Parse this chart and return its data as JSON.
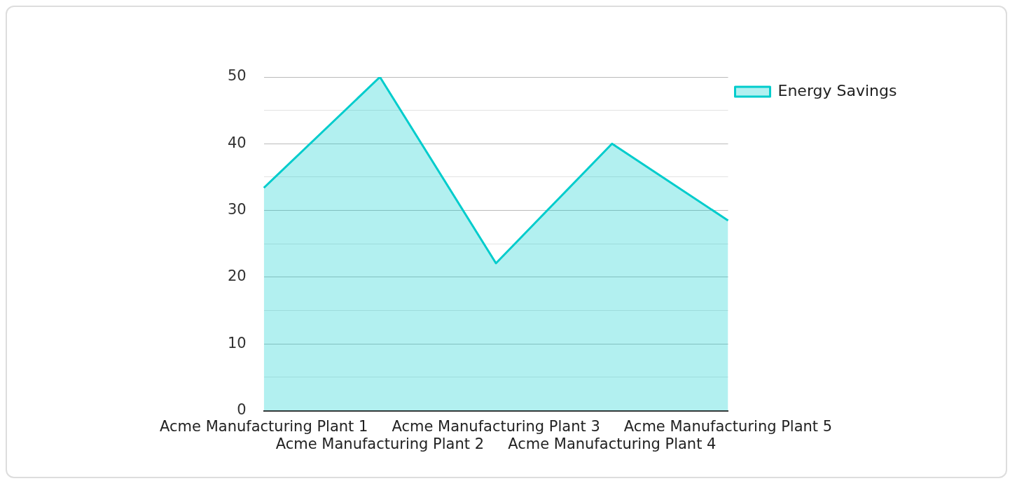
{
  "chart_data": {
    "type": "area",
    "categories": [
      "Acme Manufacturing Plant 1",
      "Acme Manufacturing Plant 2",
      "Acme Manufacturing Plant 3",
      "Acme Manufacturing Plant 4",
      "Acme Manufacturing Plant 5"
    ],
    "series": [
      {
        "name": "Energy Savings",
        "color": "#00cccc",
        "values": [
          33.4,
          50,
          22.1,
          40,
          28.5
        ]
      }
    ],
    "ylim": [
      0,
      50
    ],
    "yticks": [
      0,
      {
        "value": 5,
        "label": null
      },
      10,
      {
        "value": 15,
        "label": null
      },
      20,
      {
        "value": 25,
        "label": null
      },
      30,
      {
        "value": 35,
        "label": null
      },
      40,
      {
        "value": 45,
        "label": null
      },
      50
    ],
    "grid": "y",
    "legend": "top right",
    "marker": "none"
  }
}
